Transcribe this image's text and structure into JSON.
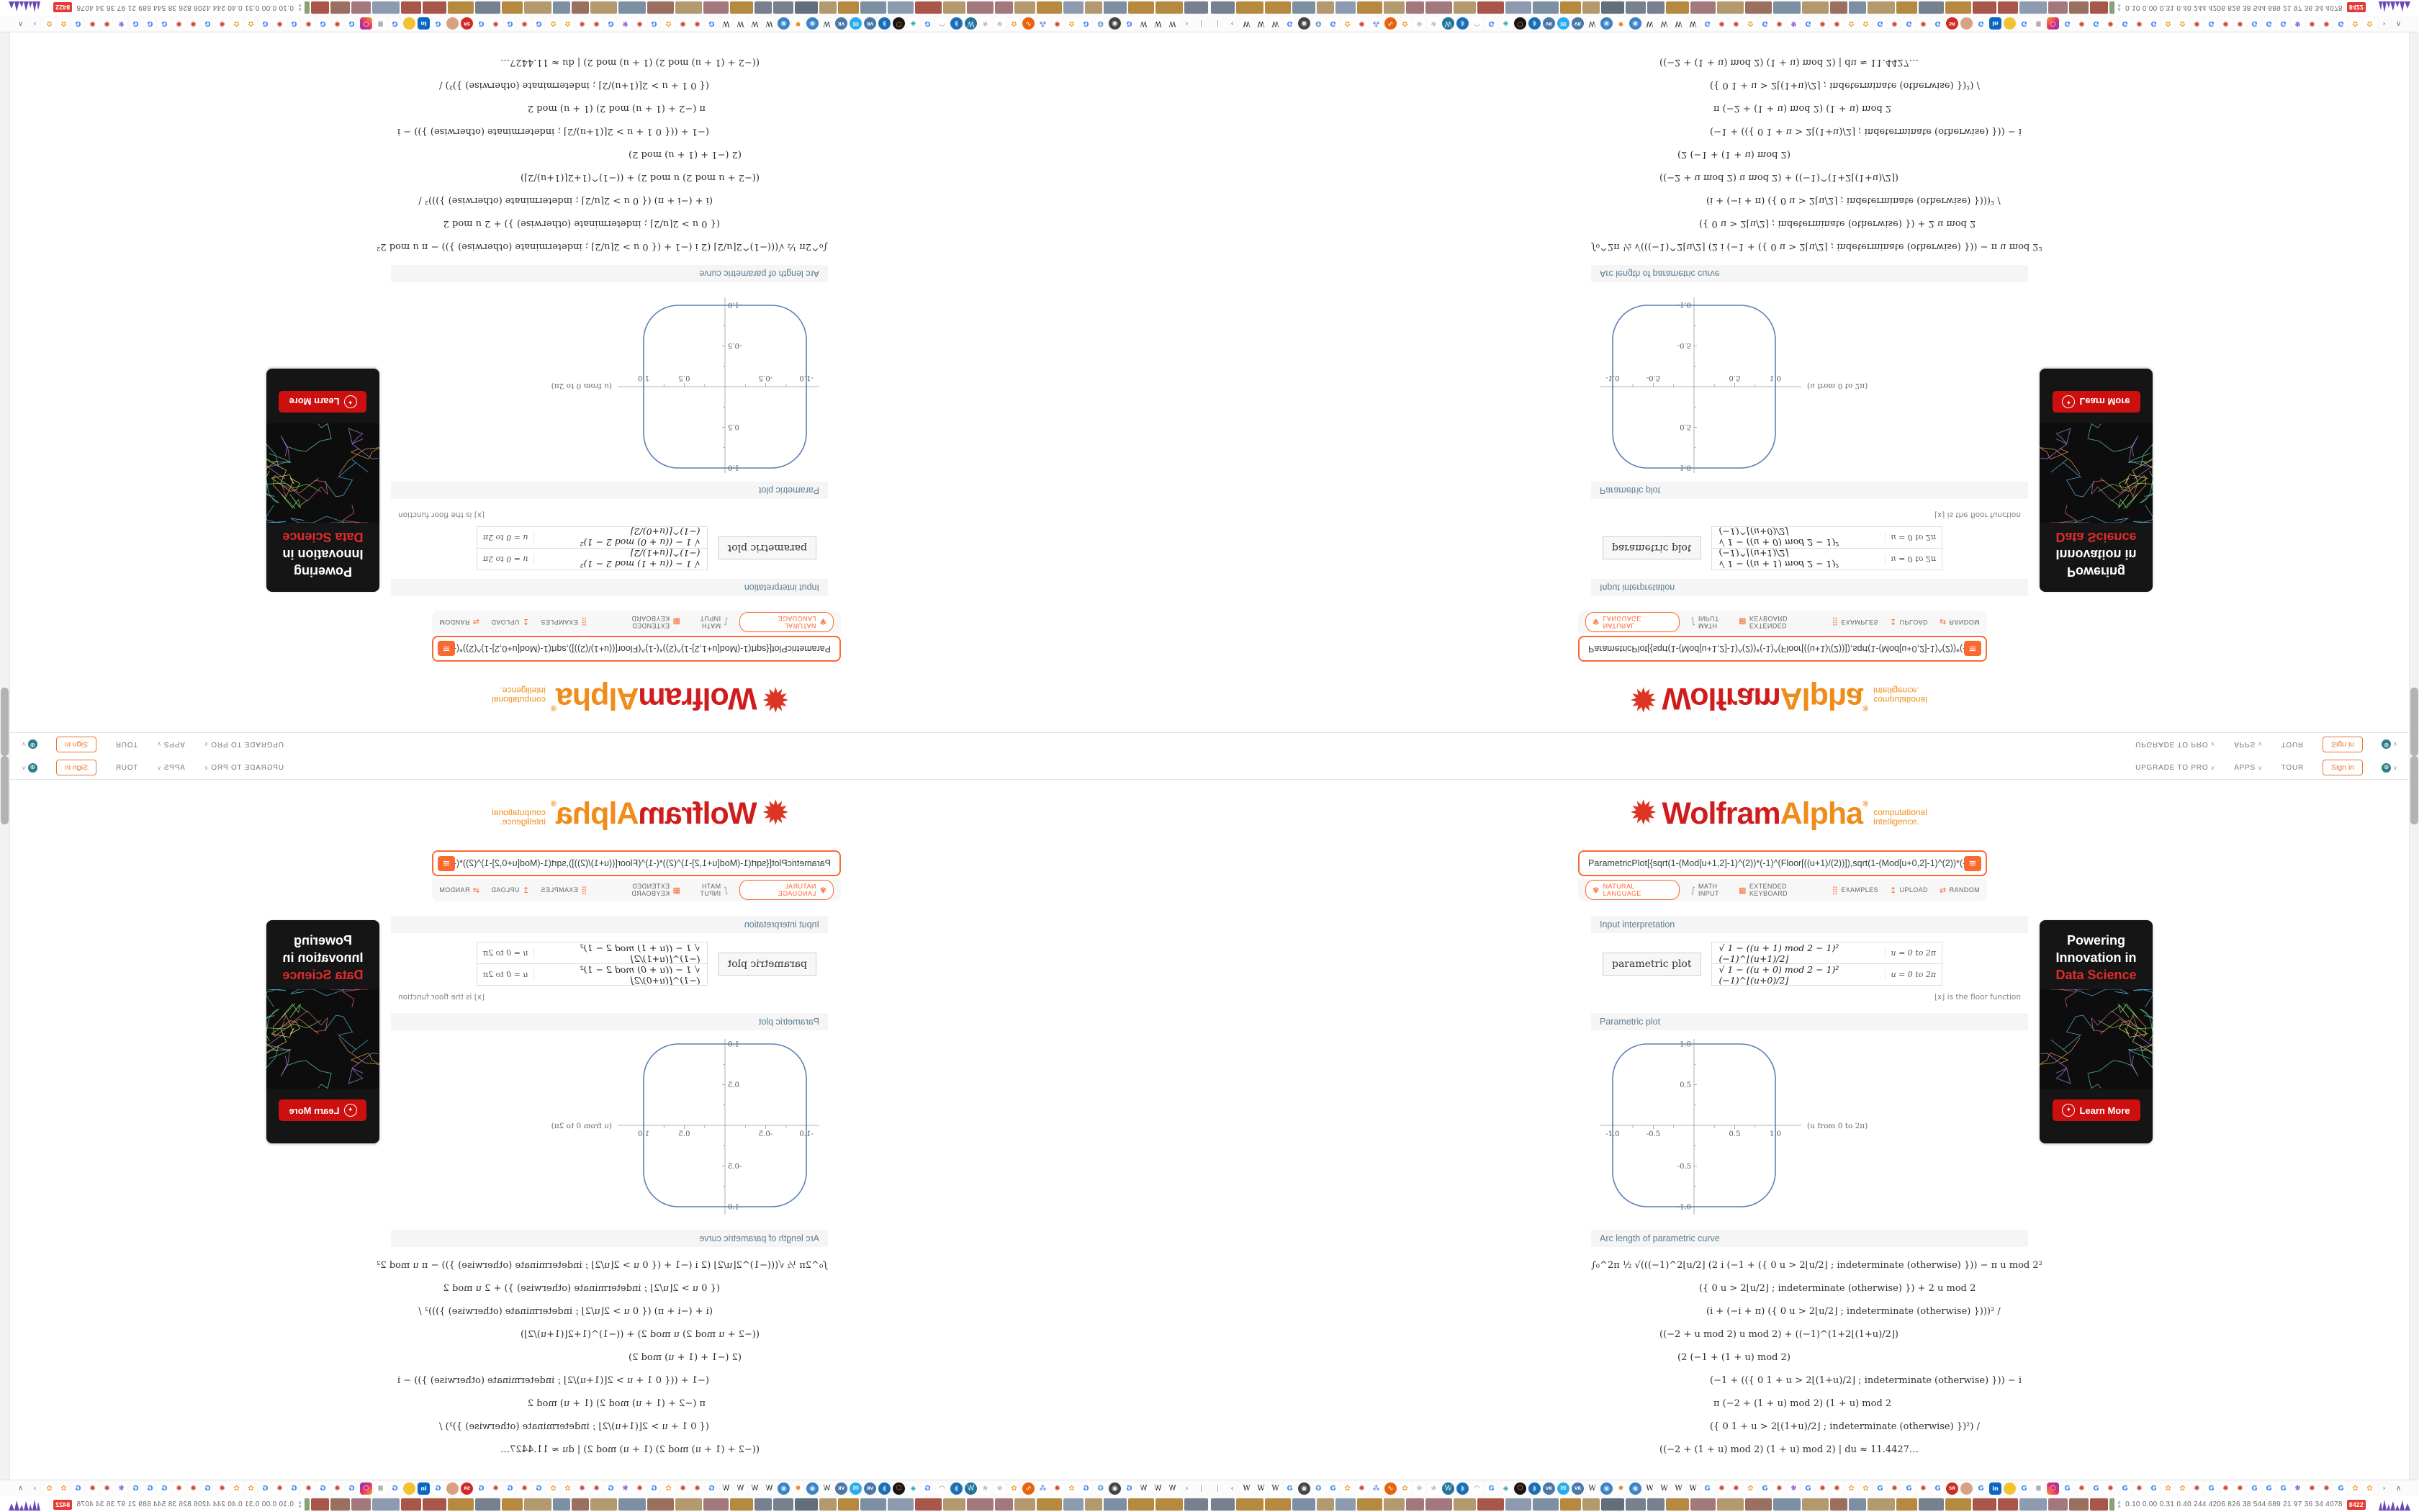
{
  "colors": {
    "accent_orange": "#f96932",
    "wolfram_red": "#cf1d1d",
    "alpha_orange": "#f08c1a",
    "plot_blue": "#5e81b5",
    "ad_red": "#cc0f0f",
    "badge_red": "#e53935"
  },
  "page": {
    "nav": {
      "upgrade": "UPGRADE TO PRO",
      "apps": "APPS",
      "tour": "TOUR",
      "sign_in": "Sign in"
    },
    "logo": {
      "star": "✹",
      "wolfram": "Wolfram",
      "alpha": "Alpha",
      "reg": "®",
      "tagline_1": "computational",
      "tagline_2": "intelligence."
    },
    "query": {
      "value": "ParametricPlot[{sqrt(1-(Mod[u+1,2]-1)^(2))*(-1)^(Floor[((u+1)/(2))]),sqrt(1-(Mod[u+0,2]-1)^(2))*(-1)^(Floo",
      "go_glyph": "≡"
    },
    "toolbar": {
      "natural_language": "NATURAL LANGUAGE",
      "math_input": "MATH INPUT",
      "extended_keyboard": "EXTENDED KEYBOARD",
      "examples": "EXAMPLES",
      "upload": "UPLOAD",
      "random": "RANDOM"
    },
    "pods": {
      "input_interpretation": {
        "title": "Input interpretation",
        "chip": "parametric plot",
        "rows": [
          {
            "formula": "√ 1 − ((u + 1) mod 2 − 1)²  (−1)^⌊(u+1)/2⌋",
            "domain": "u = 0 to 2π"
          },
          {
            "formula": "√ 1 − ((u + 0) mod 2 − 1)²  (−1)^⌊(u+0)/2⌋",
            "domain": "u = 0 to 2π"
          }
        ],
        "note": "⌊x⌋ is the floor function"
      },
      "parametric_plot": {
        "title": "Parametric plot",
        "u_label": "(u from 0 to 2π)",
        "x_ticks": [
          "-1.0",
          "-0.5",
          "0.5",
          "1.0"
        ],
        "y_ticks": [
          "1.0",
          "0.5",
          "-0.5",
          "-1.0"
        ]
      },
      "arc_length": {
        "title": "Arc length of parametric curve",
        "lines": [
          "∫₀^2π ½ √(((−1)^2⌊u/2⌋ (2 i (−1 + ({ 0   u > 2⌊u/2⌋ ;  indeterminate  (otherwise) })) − π u mod 2²",
          "({ 0   u > 2⌊u/2⌋ ;  indeterminate  (otherwise) }) + 2 u mod 2",
          "(i + (−i + π) ({ 0   u > 2⌊u/2⌋ ;  indeterminate  (otherwise) })))² /",
          "((−2 + u mod 2) u mod 2) + ((−1)^(1+2⌊(1+u)/2⌋)",
          "(2 (−1 + (1 + u) mod 2)",
          "(−1 + (({ 0   1 + u > 2⌊(1+u)/2⌋ ;  indeterminate  (otherwise) })) − i",
          "π (−2 + (1 + u) mod 2) (1 + u) mod 2",
          "({ 0   1 + u > 2⌊(1+u)/2⌋ ;  indeterminate  (otherwise) })²) /",
          "((−2 + (1 + u) mod 2) (1 + u) mod 2) | du ≈ 11.4427…"
        ]
      }
    },
    "ad": {
      "line1": "Powering",
      "line2": "Innovation in",
      "line3": "Data Science",
      "button": "Learn More"
    }
  },
  "chrome": {
    "favicons": [
      "bar",
      "chevron-left",
      "W",
      "W",
      "W",
      "g",
      "darkdot",
      "bluegear",
      "g",
      "flower",
      "wa",
      "people",
      "audio",
      "flower",
      "flower-gray",
      "flower-gray",
      "wordpress",
      "drop",
      "arc",
      "g",
      "cube",
      "hex",
      "drop",
      "vk",
      "chat",
      "vk",
      "W",
      "sphere",
      "gear-orange",
      "sphere",
      "W",
      "W",
      "W",
      "W",
      "g",
      "wa",
      "wa",
      "flower",
      "g",
      "wa",
      "pinwheel",
      "g",
      "wa",
      "wa",
      "flower",
      "flower",
      "g",
      "wa",
      "g",
      "wa",
      "g",
      "sr",
      "face",
      "g",
      "linkedin",
      "yellow",
      "g",
      "list",
      "instagram",
      "g",
      "wa",
      "g",
      "wa",
      "g",
      "wa",
      "g",
      "flower",
      "flower",
      "wa",
      "g",
      "wa",
      "wa",
      "g",
      "g",
      "g",
      "pinwheel",
      "wa",
      "wa",
      "g",
      "flower",
      "flower",
      "chevron-right",
      "chevron-up"
    ],
    "status": {
      "numbers": "0.10 0.00 0.31 0.40  244 4206 826   38   544   689   21   97   36   34   4078",
      "badge": "8422"
    },
    "segments": {
      "count": 38,
      "palette": [
        "#a9564a",
        "#7d8fa3",
        "#b3996e",
        "#8aa07a",
        "#9a6f5f",
        "#76808e",
        "#b5893f",
        "#616f7d",
        "#a3787d",
        "#8c9bb0"
      ]
    }
  },
  "chart_data": {
    "type": "line",
    "title": "Parametric plot",
    "description": "Closed squircle (rounded-square) parametric curve traced for u = 0 to 2π",
    "x": {
      "label": "",
      "ticks": [
        -1.0,
        -0.5,
        0.5,
        1.0
      ],
      "range": [
        -1.2,
        1.3
      ]
    },
    "y": {
      "label": "",
      "ticks": [
        1.0,
        0.5,
        -0.5,
        -1.0
      ],
      "range": [
        -1.15,
        1.15
      ]
    },
    "series": [
      {
        "name": "squircle",
        "parametric": true,
        "u_range": [
          0,
          6.2832
        ],
        "x_of_u": "sqrt(1-(((u+1) mod 2)-1)^2)*(-1)^floor((u+1)/2)",
        "y_of_u": "sqrt(1-(((u+0) mod 2)-1)^2)*(-1)^floor(u/2)",
        "color": "#5e81b5"
      }
    ],
    "annotations": [
      "(u from 0 to 2π)"
    ],
    "arc_length": 11.4427,
    "grid": false,
    "legend": false
  }
}
